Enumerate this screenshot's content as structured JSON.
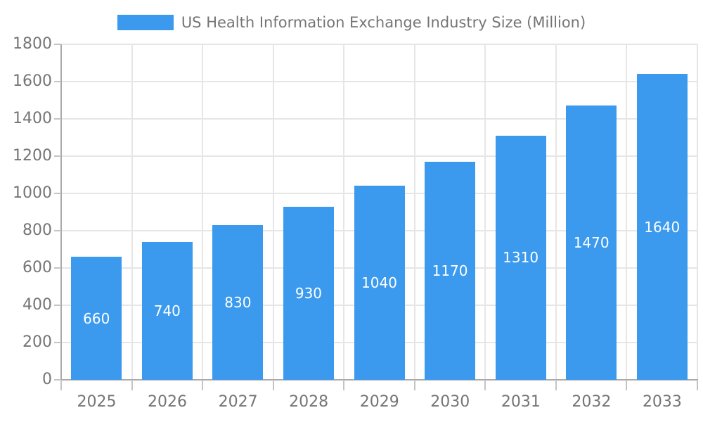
{
  "chart_data": {
    "type": "bar",
    "title": "US Health Information Exchange Industry Size (Million)",
    "legend": {
      "position": "top",
      "entries": [
        "US Health Information Exchange Industry Size (Million)"
      ]
    },
    "categories": [
      "2025",
      "2026",
      "2027",
      "2028",
      "2029",
      "2030",
      "2031",
      "2032",
      "2033"
    ],
    "values": [
      660,
      740,
      830,
      930,
      1040,
      1170,
      1310,
      1470,
      1640
    ],
    "value_labels": {
      "position": "inside-center",
      "color": "#ffffff"
    },
    "xlabel": "",
    "ylabel": "",
    "ylim": [
      0,
      1800
    ],
    "ytick_step": 200,
    "ytick_labels": [
      "0",
      "200",
      "400",
      "600",
      "800",
      "1000",
      "1200",
      "1400",
      "1600",
      "1800"
    ],
    "grid": "horizontal and vertical, light gray, ticks outside at category boundaries",
    "colors": {
      "bar": "#3B9AEE",
      "grid": "#E6E6E6",
      "axis": "#A9A9A9",
      "tick": "#C4C4C4",
      "tick_text": "#757575",
      "background": "#FFFFFF"
    }
  }
}
